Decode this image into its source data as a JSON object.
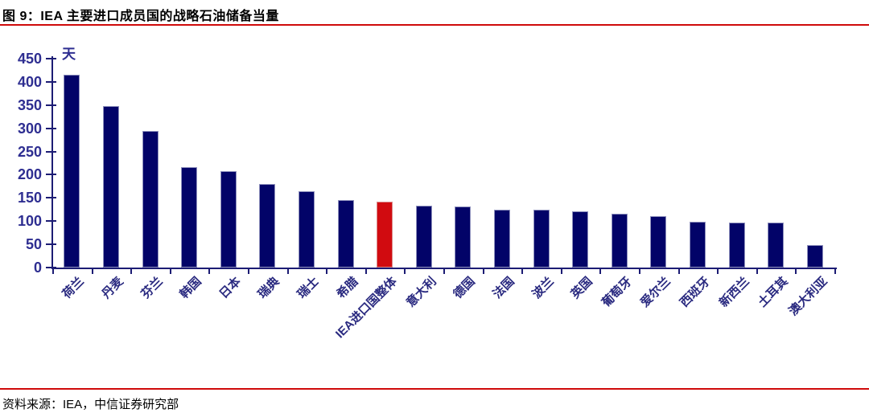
{
  "header": {
    "title": "图 9：IEA 主要进口成员国的战略石油储备当量"
  },
  "footer": {
    "source": "资料来源：IEA，中信证券研究部"
  },
  "colors": {
    "rule_red": "#cf0a0a",
    "bar_navy": "#020368",
    "bar_highlight_red": "#d10b10",
    "axis_navy": "#1c1c74",
    "tick_label_navy": "#2e2e91",
    "category_label_navy": "#2a2a80"
  },
  "chart_data": {
    "type": "bar",
    "title": "图 9：IEA 主要进口成员国的战略石油储备当量",
    "unit_label": "天",
    "xlabel": "",
    "ylabel": "天",
    "ylim": [
      0,
      450
    ],
    "ytick_step": 50,
    "yticks": [
      0,
      50,
      100,
      150,
      200,
      250,
      300,
      350,
      400,
      450
    ],
    "grid": false,
    "legend": false,
    "categories": [
      "荷兰",
      "丹麦",
      "芬兰",
      "韩国",
      "日本",
      "瑞典",
      "瑞士",
      "希腊",
      "IEA进口国整体",
      "意大利",
      "德国",
      "法国",
      "波兰",
      "英国",
      "葡萄牙",
      "爱尔兰",
      "西班牙",
      "新西兰",
      "土耳其",
      "澳大利亚"
    ],
    "values": [
      415,
      348,
      295,
      217,
      208,
      180,
      165,
      146,
      142,
      134,
      132,
      125,
      124,
      122,
      116,
      110,
      99,
      97,
      97,
      49
    ],
    "highlight_category": "IEA进口国整体",
    "highlight_index": 8
  }
}
